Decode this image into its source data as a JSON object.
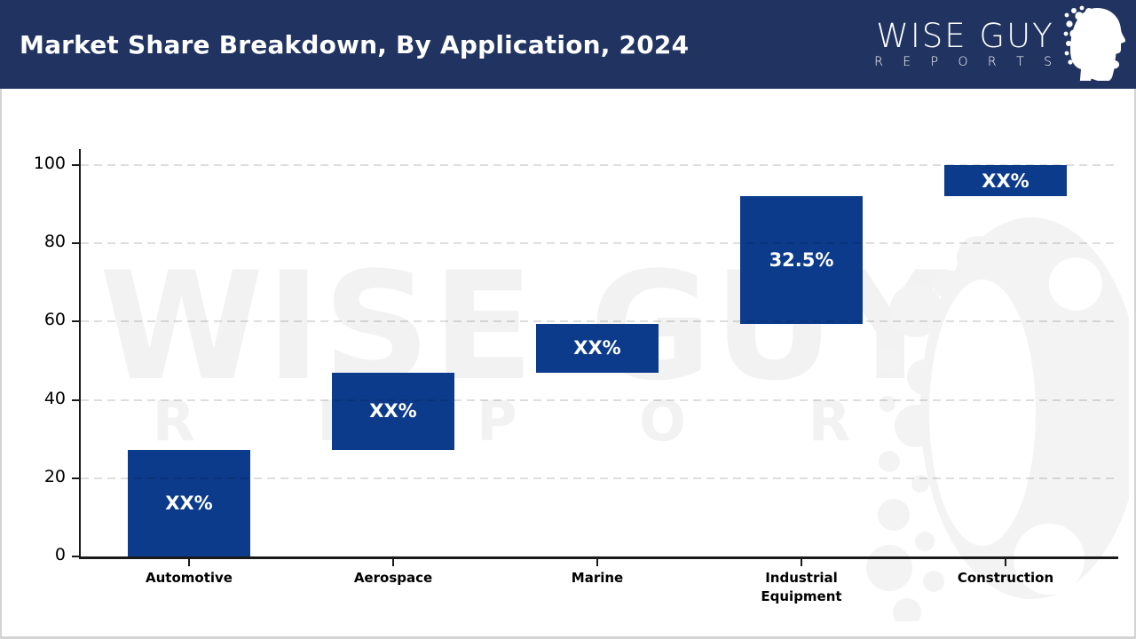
{
  "header": {
    "title": "Market Share Breakdown, By Application, 2024",
    "bg_color": "#213461",
    "logo": {
      "line1": "WISE GUY",
      "line2": "R E P O R T S",
      "icon": "head-profile-dots-icon"
    }
  },
  "watermark": {
    "line1": "WISE GUY",
    "line2": "R E P O R T S"
  },
  "chart_data": {
    "type": "bar",
    "subtype": "floating-waterfall",
    "title": "Market Share Breakdown, By Application, 2024",
    "categories": [
      "Automotive",
      "Aerospace",
      "Marine",
      "Industrial Equipment",
      "Construction"
    ],
    "bars": [
      {
        "category": "Automotive",
        "start": 0,
        "end": 27.3,
        "label": "XX%"
      },
      {
        "category": "Aerospace",
        "start": 27.3,
        "end": 47.0,
        "label": "XX%"
      },
      {
        "category": "Marine",
        "start": 47.0,
        "end": 59.5,
        "label": "XX%"
      },
      {
        "category": "Industrial Equipment",
        "start": 59.5,
        "end": 92.0,
        "label": "32.5%"
      },
      {
        "category": "Construction",
        "start": 92.0,
        "end": 100,
        "label": "XX%"
      }
    ],
    "xlabel": "",
    "ylabel": "",
    "ylim": [
      0,
      100
    ],
    "yticks": [
      0,
      20,
      40,
      60,
      80,
      100
    ],
    "grid": "horizontal-dashed",
    "legend": "none",
    "bar_color": "#0c3b8c",
    "bar_label_color": "#ffffff",
    "axis_color": "#1a1a1a"
  }
}
